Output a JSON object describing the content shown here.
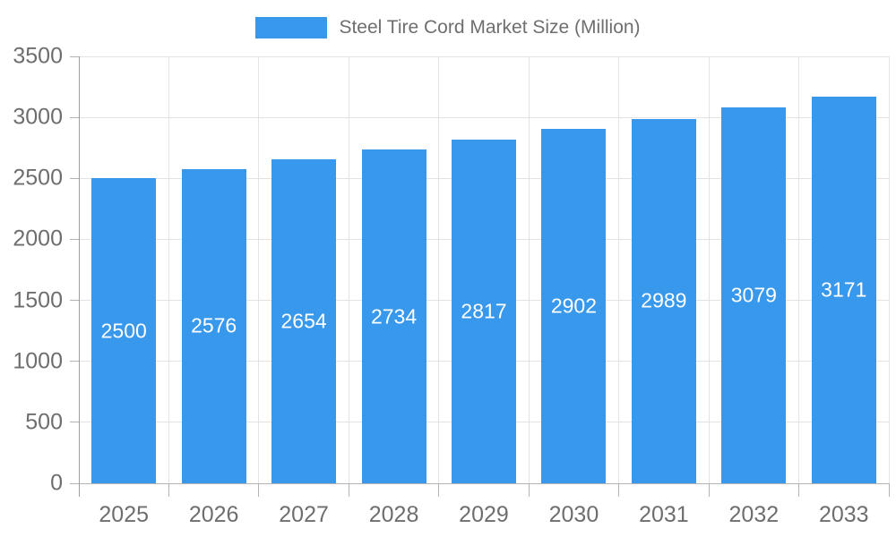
{
  "chart_data": {
    "type": "bar",
    "title": "",
    "legend_label": "Steel Tire Cord Market Size (Million)",
    "legend_position": "top",
    "categories": [
      "2025",
      "2026",
      "2027",
      "2028",
      "2029",
      "2030",
      "2031",
      "2032",
      "2033"
    ],
    "values": [
      2500,
      2576,
      2654,
      2734,
      2817,
      2902,
      2989,
      3079,
      3171
    ],
    "bar_labels": [
      "2500",
      "2576",
      "2654",
      "2734",
      "2817",
      "2902",
      "2989",
      "3079",
      "3171"
    ],
    "xlabel": "",
    "ylabel": "",
    "ylim": [
      0,
      3500
    ],
    "ytick_step": 500,
    "ytick_labels": [
      "0",
      "500",
      "1000",
      "1500",
      "2000",
      "2500",
      "3000",
      "3500"
    ],
    "grid": true,
    "colors": {
      "bar": "#3898ec",
      "bar_label_text": "#ffffff",
      "axis_text": "#6e6e6e",
      "gridline": "#e3e3e3",
      "axis_line": "#9e9e9e",
      "baseline": "#b3b3b3",
      "tick": "#b3b3b3",
      "background": "#ffffff"
    }
  }
}
